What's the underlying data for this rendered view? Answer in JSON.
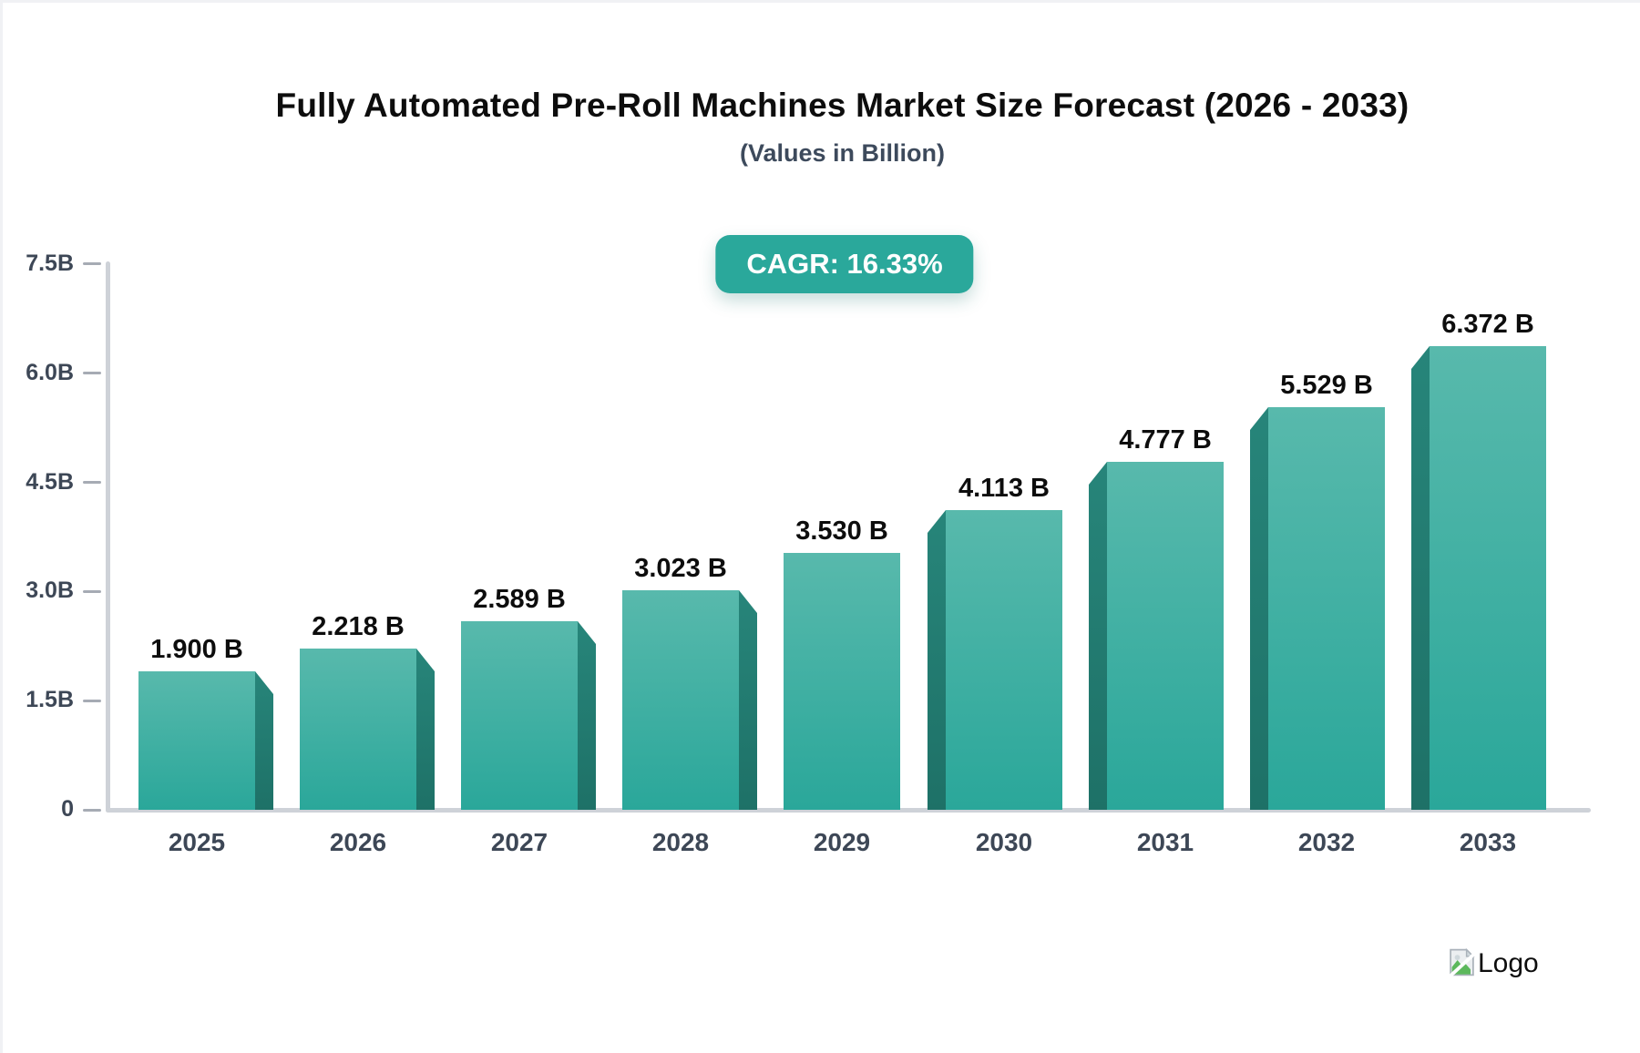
{
  "chart_data": {
    "type": "bar",
    "title": "Fully Automated Pre-Roll Machines Market Size Forecast (2026 - 2033)",
    "subtitle": "(Values in Billion)",
    "annotation": "CAGR: 16.33%",
    "categories": [
      "2025",
      "2026",
      "2027",
      "2028",
      "2029",
      "2030",
      "2031",
      "2032",
      "2033"
    ],
    "values": [
      1.9,
      2.218,
      2.589,
      3.023,
      3.53,
      4.113,
      4.777,
      5.529,
      6.372
    ],
    "bar_labels": [
      "1.900 B",
      "2.218 B",
      "2.589 B",
      "3.023 B",
      "3.530 B",
      "4.113 B",
      "4.777 B",
      "5.529 B",
      "6.372 B"
    ],
    "unit": "Billion",
    "y_ticks": [
      {
        "label": "7.5B",
        "value": 7.5
      },
      {
        "label": "6.0B",
        "value": 6.0
      },
      {
        "label": "4.5B",
        "value": 4.5
      },
      {
        "label": "3.0B",
        "value": 3.0
      },
      {
        "label": "1.5B",
        "value": 1.5
      },
      {
        "label": "0",
        "value": 0.0
      }
    ],
    "ylim": [
      0,
      7.5
    ],
    "grid": false,
    "legend": "none",
    "colors": {
      "bar_face_top": "#58b9ac",
      "bar_face_bottom": "#2aa79a",
      "bar_side_top": "#27857a",
      "bar_side_bottom": "#1e7167",
      "axis": "#ced2d8",
      "tick": "#a6abb4",
      "axis_label": "#3d4756",
      "value_label": "#0d0d0d",
      "badge_bg": "#2aa89b",
      "badge_text": "#ffffff"
    }
  },
  "footer": {
    "logo_alt": "Logo"
  }
}
